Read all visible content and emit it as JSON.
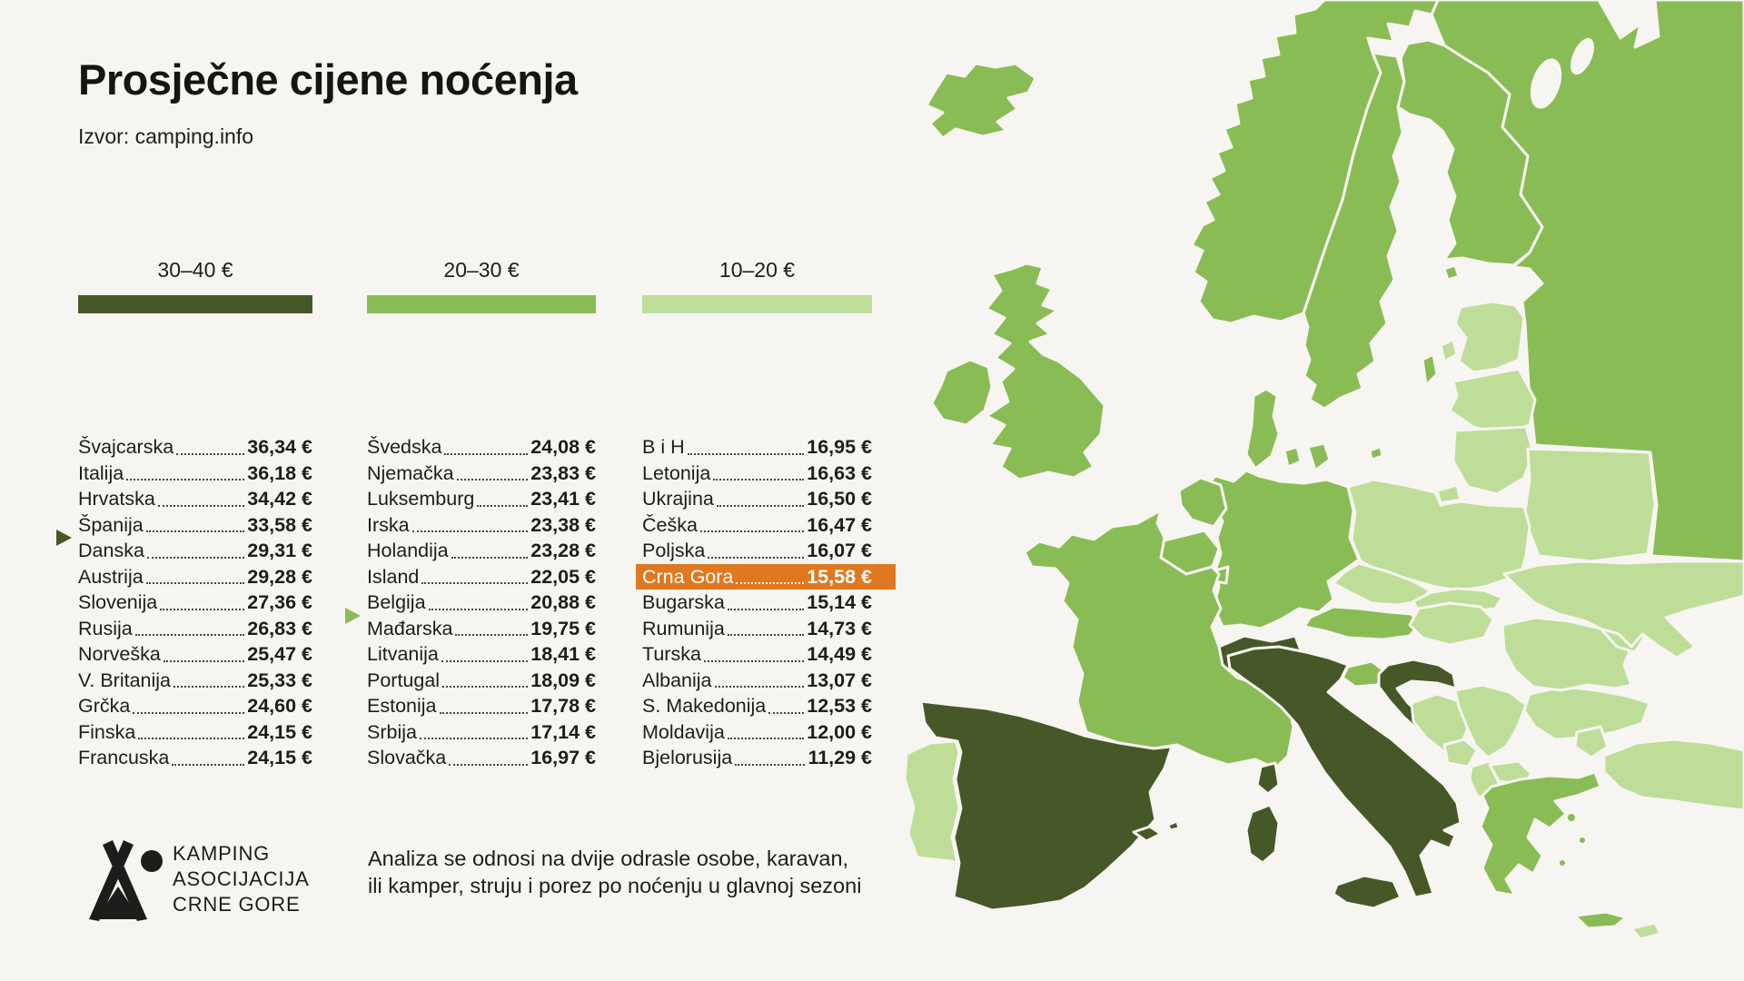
{
  "page": {
    "background": "#f7f5f1",
    "text_color": "#1d1d1b"
  },
  "header": {
    "title": "Prosječne cijene noćenja",
    "source": "Izvor: camping.info"
  },
  "legend": {
    "groups": [
      {
        "key": "30-40",
        "label": "30–40 €",
        "color": "#465828"
      },
      {
        "key": "20-30",
        "label": "20–30 €",
        "color": "#8abc55"
      },
      {
        "key": "10-20",
        "label": "10–20 €",
        "color": "#bedd99"
      }
    ]
  },
  "columns": [
    {
      "range_label": "30–40 €",
      "color": "#465828",
      "marker_after": 4,
      "marker_color": "#465828",
      "rows": [
        {
          "name": "Švajcarska",
          "value": "36,34 €"
        },
        {
          "name": "Italija",
          "value": "36,18 €"
        },
        {
          "name": "Hrvatska",
          "value": "34,42 €"
        },
        {
          "name": "Španija",
          "value": "33,58 €"
        },
        {
          "name": "Danska",
          "value": "29,31 €"
        },
        {
          "name": "Austrija",
          "value": "29,28 €"
        },
        {
          "name": "Slovenija",
          "value": "27,36 €"
        },
        {
          "name": "Rusija",
          "value": "26,83 €"
        },
        {
          "name": "Norveška",
          "value": "25,47 €"
        },
        {
          "name": "V. Britanija",
          "value": "25,33 €"
        },
        {
          "name": "Grčka",
          "value": "24,60 €"
        },
        {
          "name": "Finska",
          "value": "24,15 €"
        },
        {
          "name": "Francuska",
          "value": "24,15 €"
        }
      ]
    },
    {
      "range_label": "20–30 €",
      "color": "#8abc55",
      "marker_after": 7,
      "marker_color": "#8abc55",
      "rows": [
        {
          "name": "Švedska",
          "value": "24,08 €"
        },
        {
          "name": "Njemačka",
          "value": "23,83 €"
        },
        {
          "name": "Luksemburg",
          "value": "23,41 €"
        },
        {
          "name": "Irska",
          "value": "23,38 €"
        },
        {
          "name": "Holandija",
          "value": "23,28 €"
        },
        {
          "name": "Island",
          "value": "22,05 €"
        },
        {
          "name": "Belgija",
          "value": "20,88 €"
        },
        {
          "name": "Mađarska",
          "value": "19,75 €"
        },
        {
          "name": "Litvanija",
          "value": "18,41 €"
        },
        {
          "name": "Portugal",
          "value": "18,09 €"
        },
        {
          "name": "Estonija",
          "value": "17,78 €"
        },
        {
          "name": "Srbija",
          "value": "17,14 €"
        },
        {
          "name": "Slovačka",
          "value": "16,97 €"
        }
      ]
    },
    {
      "range_label": "10–20 €",
      "color": "#bedd99",
      "marker_after": null,
      "marker_color": null,
      "rows": [
        {
          "name": "B i H",
          "value": "16,95 €"
        },
        {
          "name": "Letonija",
          "value": "16,63 €"
        },
        {
          "name": "Ukrajina",
          "value": "16,50 €"
        },
        {
          "name": "Češka",
          "value": "16,47 €"
        },
        {
          "name": "Poljska",
          "value": "16,07 €"
        },
        {
          "name": "Crna Gora",
          "value": "15,58 €",
          "highlight": true
        },
        {
          "name": "Bugarska",
          "value": "15,14 €"
        },
        {
          "name": "Rumunija",
          "value": "14,73 €"
        },
        {
          "name": "Turska",
          "value": "14,49 €"
        },
        {
          "name": "Albanija",
          "value": "13,07 €"
        },
        {
          "name": "S. Makedonija",
          "value": "12,53 €"
        },
        {
          "name": "Moldavija",
          "value": "12,00 €"
        },
        {
          "name": "Bjelorusija",
          "value": "11,29 €"
        }
      ]
    }
  ],
  "highlight": {
    "country": "Crna Gora",
    "value": "15,58 €",
    "bg_color": "#e07820",
    "text_color": "#ffffff"
  },
  "footer": {
    "logo_text": "KAMPING\nASOCIJACIJA\nCRNE GORE",
    "note": "Analiza se odnosi na dvije odrasle osobe, karavan,\nili kamper, struju i porez po noćenju u glavnoj sezoni"
  },
  "map": {
    "sea_color": "#f7f5f1",
    "border_color": "#f7f5f1",
    "country_categories": {
      "iceland": "20-30",
      "norway": "20-30",
      "sweden": "20-30",
      "finland": "20-30",
      "russia": "20-30",
      "estonia": "10-20",
      "latvia": "10-20",
      "lithuania": "10-20",
      "kaliningrad": "10-20",
      "belarus": "10-20",
      "denmark": "20-30",
      "funen": "20-30",
      "zealand": "20-30",
      "bornholm": "20-30",
      "uk": "20-30",
      "ireland": "20-30",
      "netherlands": "20-30",
      "belgium": "20-30",
      "luxembourg": "20-30",
      "germany": "20-30",
      "poland": "10-20",
      "czechia": "10-20",
      "slovakia": "10-20",
      "austria": "20-30",
      "hungary": "10-20",
      "switzerland": "30-40",
      "france": "20-30",
      "corsica": "30-40",
      "spain": "30-40",
      "balearics": "30-40",
      "minorca": "30-40",
      "portugal": "10-20",
      "italy": "30-40",
      "sicily": "30-40",
      "sardinia": "30-40",
      "slovenia": "20-30",
      "croatia": "30-40",
      "bosnia": "10-20",
      "serbia": "10-20",
      "montenegro": "10-20",
      "albania": "10-20",
      "north-macedonia": "10-20",
      "greece": "20-30",
      "crete": "20-30",
      "aegean-1": "20-30",
      "aegean-2": "20-30",
      "aegean-3": "20-30",
      "bulgaria": "10-20",
      "romania": "10-20",
      "moldova": "10-20",
      "ukraine": "10-20",
      "turkey-europe": "10-20",
      "turkey": "10-20",
      "cyprus": "10-20",
      "gotland": "20-30",
      "aland": "20-30",
      "saaremaa": "10-20"
    }
  },
  "chart_data": {
    "type": "table",
    "title": "Prosječne cijene noćenja",
    "subtitle": "Izvor: camping.info",
    "unit": "EUR per night",
    "groups": [
      {
        "range": "30–40 €",
        "color": "#465828",
        "entries": [
          [
            "Švajcarska",
            36.34
          ],
          [
            "Italija",
            36.18
          ],
          [
            "Hrvatska",
            34.42
          ],
          [
            "Španija",
            33.58
          ],
          [
            "Danska",
            29.31
          ],
          [
            "Austrija",
            29.28
          ],
          [
            "Slovenija",
            27.36
          ],
          [
            "Rusija",
            26.83
          ],
          [
            "Norveška",
            25.47
          ],
          [
            "V. Britanija",
            25.33
          ],
          [
            "Grčka",
            24.6
          ],
          [
            "Finska",
            24.15
          ],
          [
            "Francuska",
            24.15
          ]
        ]
      },
      {
        "range": "20–30 €",
        "color": "#8abc55",
        "entries": [
          [
            "Švedska",
            24.08
          ],
          [
            "Njemačka",
            23.83
          ],
          [
            "Luksemburg",
            23.41
          ],
          [
            "Irska",
            23.38
          ],
          [
            "Holandija",
            23.28
          ],
          [
            "Island",
            22.05
          ],
          [
            "Belgija",
            20.88
          ],
          [
            "Mađarska",
            19.75
          ],
          [
            "Litvanija",
            18.41
          ],
          [
            "Portugal",
            18.09
          ],
          [
            "Estonija",
            17.78
          ],
          [
            "Srbija",
            17.14
          ],
          [
            "Slovačka",
            16.97
          ]
        ]
      },
      {
        "range": "10–20 €",
        "color": "#bedd99",
        "entries": [
          [
            "B i H",
            16.95
          ],
          [
            "Letonija",
            16.63
          ],
          [
            "Ukrajina",
            16.5
          ],
          [
            "Češka",
            16.47
          ],
          [
            "Poljska",
            16.07
          ],
          [
            "Crna Gora",
            15.58
          ],
          [
            "Bugarska",
            15.14
          ],
          [
            "Rumunija",
            14.73
          ],
          [
            "Turska",
            14.49
          ],
          [
            "Albanija",
            13.07
          ],
          [
            "S. Makedonija",
            12.53
          ],
          [
            "Moldavija",
            12.0
          ],
          [
            "Bjelorusija",
            11.29
          ]
        ]
      }
    ],
    "highlighted_entry": {
      "name": "Crna Gora",
      "value": 15.58,
      "color": "#e07820"
    }
  }
}
